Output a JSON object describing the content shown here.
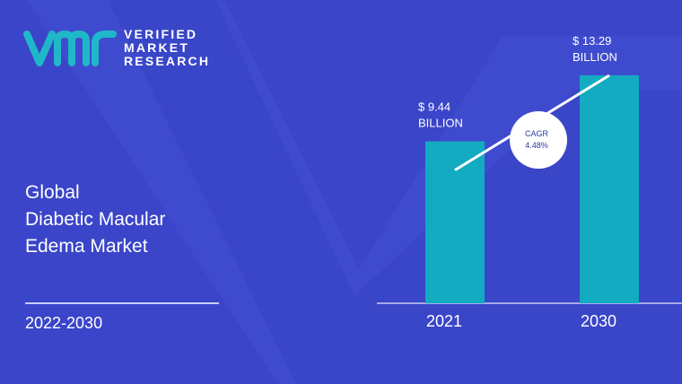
{
  "brand": {
    "line1": "VERIFIED",
    "line2": "MARKET",
    "line3": "RESEARCH",
    "logo_color": "#1fb8c9"
  },
  "report": {
    "title_line1": "Global",
    "title_line2": "Diabetic Macular",
    "title_line3": "Edema Market",
    "period": "2022-2030"
  },
  "colors": {
    "background": "#3a45c9",
    "bar": "#13abc1",
    "text": "#ffffff"
  },
  "chart_data": {
    "type": "bar",
    "categories": [
      "2021",
      "2030"
    ],
    "values": [
      9.44,
      13.29
    ],
    "value_labels": [
      [
        "$ 9.44",
        "BILLION"
      ],
      [
        "$ 13.29",
        "BILLION"
      ]
    ],
    "annotation": {
      "line1": "CAGR",
      "line2": "4.48%"
    },
    "title": "",
    "xlabel": "",
    "ylabel": "",
    "ylim": [
      0,
      13.29
    ]
  }
}
